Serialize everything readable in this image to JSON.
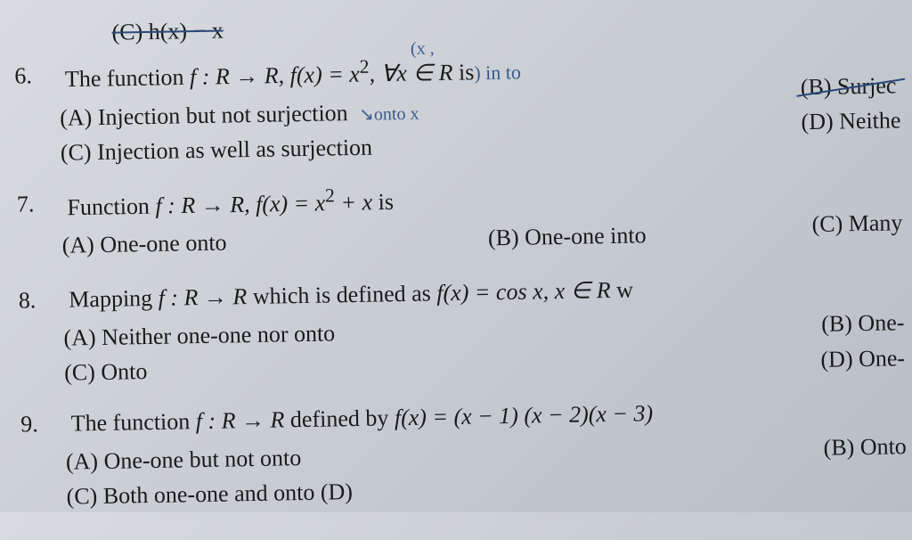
{
  "topPartial": {
    "label": "(C) h(x) − x",
    "strike": true
  },
  "q6": {
    "number": "6.",
    "stem_prefix": "The function ",
    "func": "f : R → R, f(x) = x",
    "exponent": "2",
    "forall": ", ∀x ∈ R",
    "is": " is",
    "annotation_top": "(x ,",
    "annotation_into": ") in to",
    "annotation_onto_arrow": "↘onto x",
    "optA": "(A) Injection but not surjection",
    "optB": "(B) Surjec",
    "optC": "(C) Injection as well as surjection",
    "optD": "(D) Neithe"
  },
  "q7": {
    "number": "7.",
    "stem_prefix": "Function ",
    "func": "f : R → R, f(x) = x",
    "exponent": "2",
    "plus": " + x",
    "is": " is",
    "optA": "(A) One-one onto",
    "optB": "(B) One-one into",
    "optC": "(C) Many"
  },
  "q8": {
    "number": "8.",
    "stem_prefix": "Mapping ",
    "func": "f : R → R",
    "defined": " which is defined as ",
    "fx": "f(x) = cos x, x ∈ R",
    "trail": " w",
    "optA": "(A) Neither one-one nor onto",
    "optB": "(B) One-",
    "optC": "(C) Onto",
    "optD": "(D) One-"
  },
  "q9": {
    "number": "9.",
    "stem_prefix": "The function ",
    "func": "f : R → R",
    "defined": " defined by ",
    "fx": "f(x) = (x − 1)  (x − 2)(x − 3)",
    "optA": "(A) One-one but not onto",
    "optB": "(B) Onto",
    "optC_partial": "(C) Both one-one and onto (D)"
  },
  "styling": {
    "background_gradient": [
      "#d8dce0",
      "#c8cdd3",
      "#b8bec5"
    ],
    "text_color": "#1a1a1a",
    "handwriting_color": "#2a4a7a",
    "font_size": 26,
    "rotation_deg": -1
  }
}
